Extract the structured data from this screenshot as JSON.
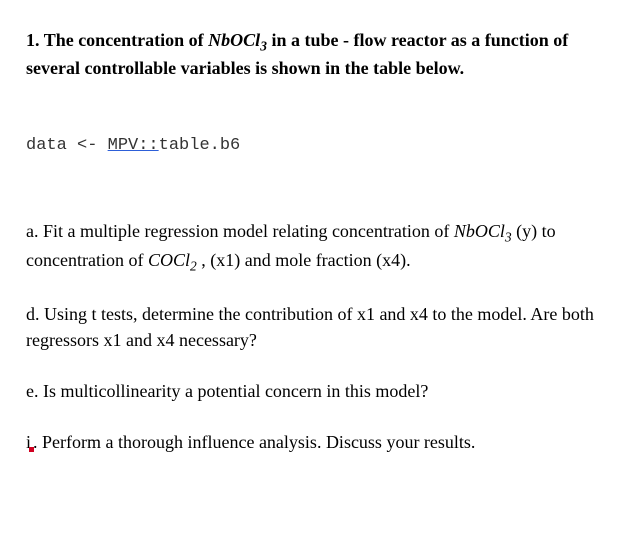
{
  "intro": {
    "number": "1.",
    "pre": "The concentration of",
    "formula_base": "NbOCl",
    "formula_sub": "3",
    "post": "in a tube - flow reactor as a function of several controllable variables is shown in the table below."
  },
  "code": {
    "lhs": "data <- ",
    "pkg": "MPV::",
    "obj": "table.b6"
  },
  "part_a": {
    "label": "a.",
    "t1": "Fit a multiple regression model relating concentration of",
    "f1_base": "NbOCl",
    "f1_sub": "3",
    "t2": "(y) to concentration of",
    "f2_base": "COCl",
    "f2_sub": "2",
    "t3": ", (x1) and mole fraction (x4)."
  },
  "part_d": {
    "label": "d.",
    "text": "Using t tests, determine the contribution of x1 and x4 to the model. Are both regressors x1 and x4 necessary?"
  },
  "part_e": {
    "label": "e.",
    "text": "Is multicollinearity a potential concern in this model?"
  },
  "part_i": {
    "label": "i",
    "dot": ".",
    "text": "Perform a thorough influence analysis. Discuss your results."
  },
  "colors": {
    "background": "#ffffff",
    "text": "#000000",
    "link_underline": "#2d5fd8",
    "cursor_mark": "#d00020"
  },
  "typography": {
    "body_font": "Times New Roman",
    "body_size_pt": 14,
    "code_font": "Consolas",
    "code_size_pt": 13
  }
}
